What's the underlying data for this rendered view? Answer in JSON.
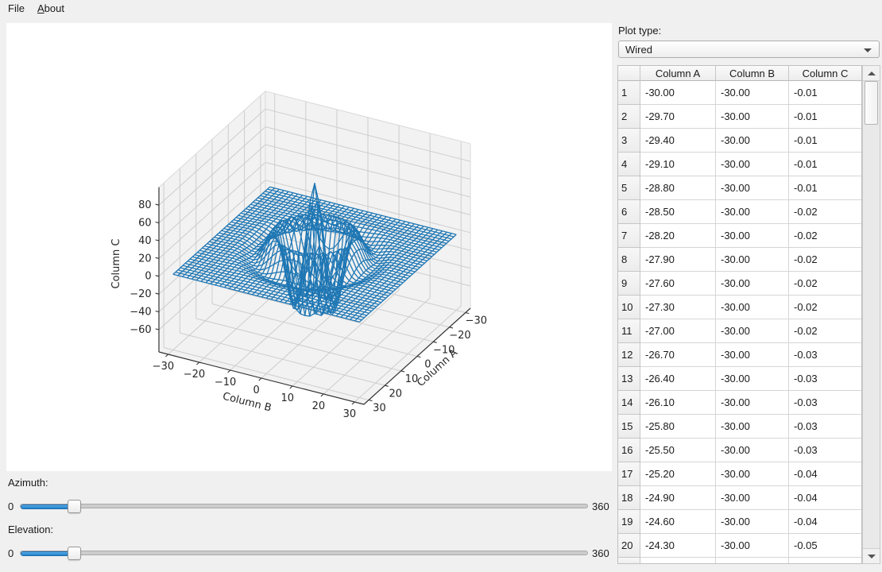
{
  "menu": {
    "file_label": "File",
    "about_mnemonic": "A",
    "about_rest": "bout"
  },
  "plot_type": {
    "label": "Plot type:",
    "value": "Wired"
  },
  "table": {
    "headers": [
      "Column A",
      "Column B",
      "Column C"
    ],
    "rows": [
      {
        "index": "1",
        "a": "-30.00",
        "b": "-30.00",
        "c": "-0.01"
      },
      {
        "index": "2",
        "a": "-29.70",
        "b": "-30.00",
        "c": "-0.01"
      },
      {
        "index": "3",
        "a": "-29.40",
        "b": "-30.00",
        "c": "-0.01"
      },
      {
        "index": "4",
        "a": "-29.10",
        "b": "-30.00",
        "c": "-0.01"
      },
      {
        "index": "5",
        "a": "-28.80",
        "b": "-30.00",
        "c": "-0.01"
      },
      {
        "index": "6",
        "a": "-28.50",
        "b": "-30.00",
        "c": "-0.02"
      },
      {
        "index": "7",
        "a": "-28.20",
        "b": "-30.00",
        "c": "-0.02"
      },
      {
        "index": "8",
        "a": "-27.90",
        "b": "-30.00",
        "c": "-0.02"
      },
      {
        "index": "9",
        "a": "-27.60",
        "b": "-30.00",
        "c": "-0.02"
      },
      {
        "index": "10",
        "a": "-27.30",
        "b": "-30.00",
        "c": "-0.02"
      },
      {
        "index": "11",
        "a": "-27.00",
        "b": "-30.00",
        "c": "-0.02"
      },
      {
        "index": "12",
        "a": "-26.70",
        "b": "-30.00",
        "c": "-0.03"
      },
      {
        "index": "13",
        "a": "-26.40",
        "b": "-30.00",
        "c": "-0.03"
      },
      {
        "index": "14",
        "a": "-26.10",
        "b": "-30.00",
        "c": "-0.03"
      },
      {
        "index": "15",
        "a": "-25.80",
        "b": "-30.00",
        "c": "-0.03"
      },
      {
        "index": "16",
        "a": "-25.50",
        "b": "-30.00",
        "c": "-0.03"
      },
      {
        "index": "17",
        "a": "-25.20",
        "b": "-30.00",
        "c": "-0.04"
      },
      {
        "index": "18",
        "a": "-24.90",
        "b": "-30.00",
        "c": "-0.04"
      },
      {
        "index": "19",
        "a": "-24.60",
        "b": "-30.00",
        "c": "-0.04"
      },
      {
        "index": "20",
        "a": "-24.30",
        "b": "-30.00",
        "c": "-0.05"
      }
    ]
  },
  "sliders": {
    "azimuth": {
      "label": "Azimuth:",
      "min": "0",
      "max": "360",
      "position_pct": 9.2
    },
    "elevation": {
      "label": "Elevation:",
      "min": "0",
      "max": "360",
      "position_pct": 9.2
    }
  },
  "chart_data": {
    "type": "wireframe-3d",
    "xlabel": "Column B",
    "ylabel": "Column A",
    "zlabel": "Column C",
    "x_ticks": [
      -30,
      -20,
      -10,
      0,
      10,
      20,
      30
    ],
    "y_ticks": [
      -30,
      -20,
      -10,
      0,
      10,
      20,
      30
    ],
    "z_ticks": [
      80,
      60,
      40,
      20,
      0,
      -20,
      -40,
      -60
    ],
    "xlim": [
      -33,
      33
    ],
    "ylim": [
      -33,
      33
    ],
    "zlim": [
      -85,
      100
    ],
    "surface": {
      "description": "Ripple surface: z = 80*cos(0.5*r)*exp(-(r/11)^2), r = sqrt(A^2+B^2); sampled A,B in [-30,30]; table shows rows starting at A=-30.00 step 0.30 with B=-30.00",
      "amplitude": 80,
      "k": 0.5,
      "sigma": 11,
      "grid_min": -30,
      "grid_max": 30,
      "grid_step": 1.5
    },
    "line_color": "#1f77b4",
    "pane_color": "#f2f2f2",
    "grid_color": "#cdcdcd",
    "axis_color": "#333333",
    "edge_color": "#d9d9d9"
  }
}
